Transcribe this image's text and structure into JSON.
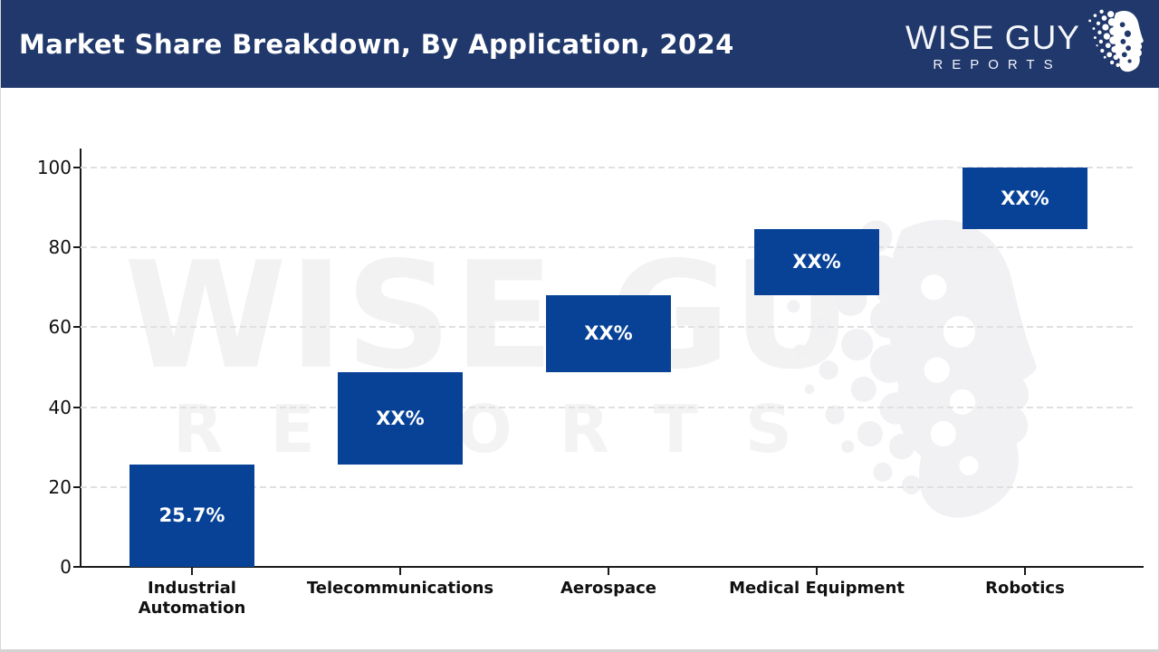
{
  "header": {
    "title": "Market Share Breakdown, By Application, 2024",
    "logo": {
      "line1": "WISE GUY",
      "line2": "REPORTS"
    }
  },
  "watermark": {
    "line1": "WISE GUY",
    "line2": "REPORTS"
  },
  "colors": {
    "header_bg": "#20386b",
    "bar": "#084297",
    "grid": "#e0e0e0",
    "axis": "#1a1a1a"
  },
  "chart_data": {
    "type": "bar",
    "subtype": "waterfall",
    "title": "Market Share Breakdown, By Application, 2024",
    "xlabel": "",
    "ylabel": "",
    "ylim": [
      0,
      105
    ],
    "yticks": [
      0,
      20,
      40,
      60,
      80,
      100
    ],
    "grid": "horizontal-dashed",
    "legend": "none",
    "categories": [
      "Industrial\nAutomation",
      "Telecommunications",
      "Aerospace",
      "Medical Equipment",
      "Robotics"
    ],
    "segments": [
      {
        "category": "Industrial\nAutomation",
        "start": 0,
        "end": 25.7,
        "label": "25.7%"
      },
      {
        "category": "Telecommunications",
        "start": 25.7,
        "end": 48.8,
        "label": "XX%"
      },
      {
        "category": "Aerospace",
        "start": 48.8,
        "end": 68.1,
        "label": "XX%"
      },
      {
        "category": "Medical Equipment",
        "start": 68.1,
        "end": 84.6,
        "label": "XX%"
      },
      {
        "category": "Robotics",
        "start": 84.6,
        "end": 100,
        "label": "XX%"
      }
    ]
  }
}
